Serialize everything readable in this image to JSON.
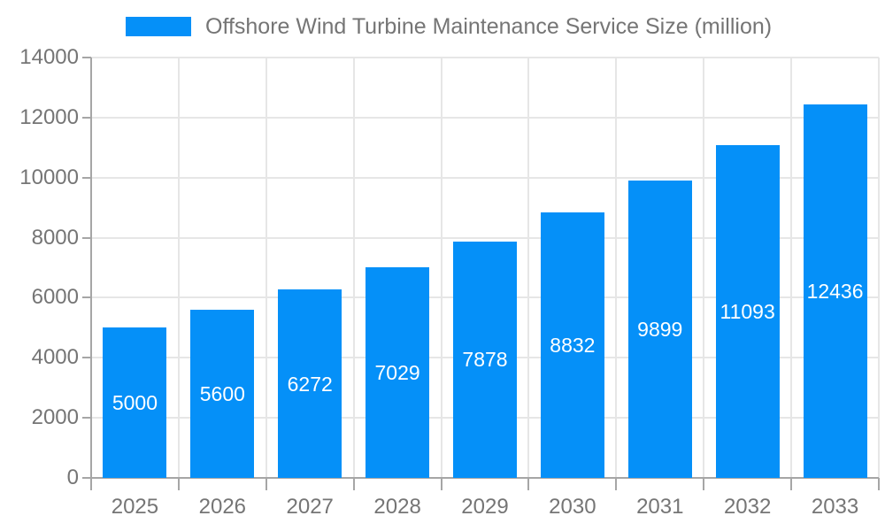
{
  "legend": {
    "series_label": "Offshore Wind Turbine Maintenance Service Size (million)"
  },
  "chart_data": {
    "type": "bar",
    "title": "Offshore Wind Turbine Maintenance Service Size (million)",
    "categories": [
      "2025",
      "2026",
      "2027",
      "2028",
      "2029",
      "2030",
      "2031",
      "2032",
      "2033"
    ],
    "values": [
      5000,
      5600,
      6272,
      7029,
      7878,
      8832,
      9899,
      11093,
      12436
    ],
    "xlabel": "",
    "ylabel": "",
    "ylim": [
      0,
      14000
    ],
    "ytick_step": 2000,
    "ytick_labels": [
      "0",
      "2000",
      "4000",
      "6000",
      "8000",
      "10000",
      "12000",
      "14000"
    ],
    "grid": true,
    "legend_position": "top",
    "value_labels_inside_bars": true,
    "colors": {
      "bar": "#0590f8",
      "bar_value_text": "#ffffff",
      "axis_text": "#757575",
      "axis_line": "#a6a6a6",
      "gridline": "#e6e6e6",
      "background": "#ffffff"
    }
  }
}
